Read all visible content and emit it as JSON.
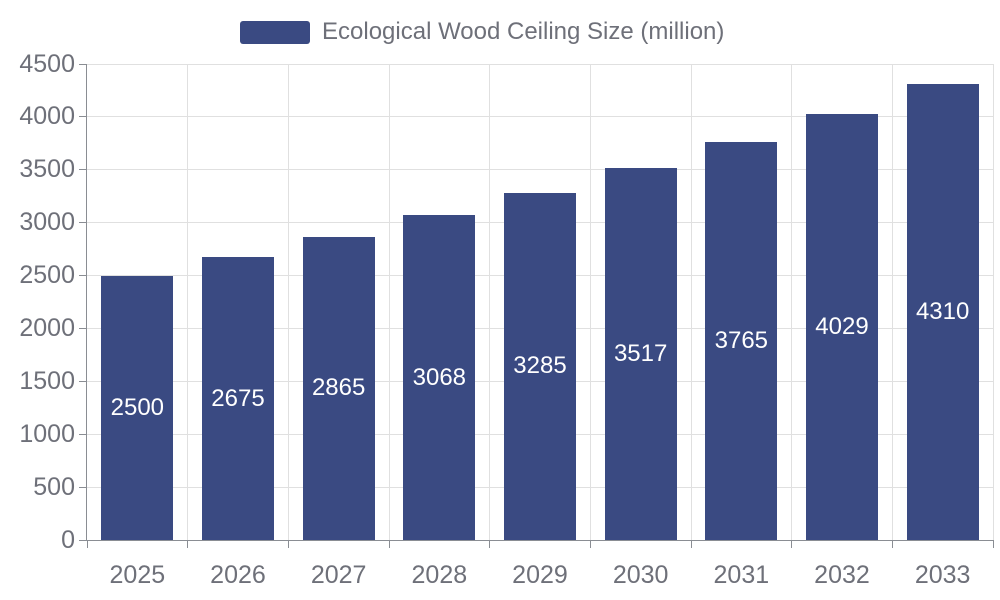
{
  "legend": {
    "label": "Ecological Wood Ceiling Size (million)"
  },
  "chart_data": {
    "type": "bar",
    "title": "Ecological Wood Ceiling Size (million)",
    "categories": [
      "2025",
      "2026",
      "2027",
      "2028",
      "2029",
      "2030",
      "2031",
      "2032",
      "2033"
    ],
    "values": [
      2500,
      2675,
      2865,
      3068,
      3285,
      3517,
      3765,
      4029,
      4310
    ],
    "series": [
      {
        "name": "Ecological Wood Ceiling Size (million)",
        "values": [
          2500,
          2675,
          2865,
          3068,
          3285,
          3517,
          3765,
          4029,
          4310
        ]
      }
    ],
    "xlabel": "",
    "ylabel": "",
    "ylim": [
      0,
      4500
    ],
    "ytick_step": 500,
    "grid": true,
    "legend_position": "top-center",
    "bar_labels_inside": true,
    "colors": {
      "bar": "#3A4A82",
      "grid": "#E0E0E0",
      "axis": "#8A8D93",
      "text": "#6E7079",
      "bar_label": "#FFFFFF",
      "background": "#FFFFFF"
    }
  }
}
